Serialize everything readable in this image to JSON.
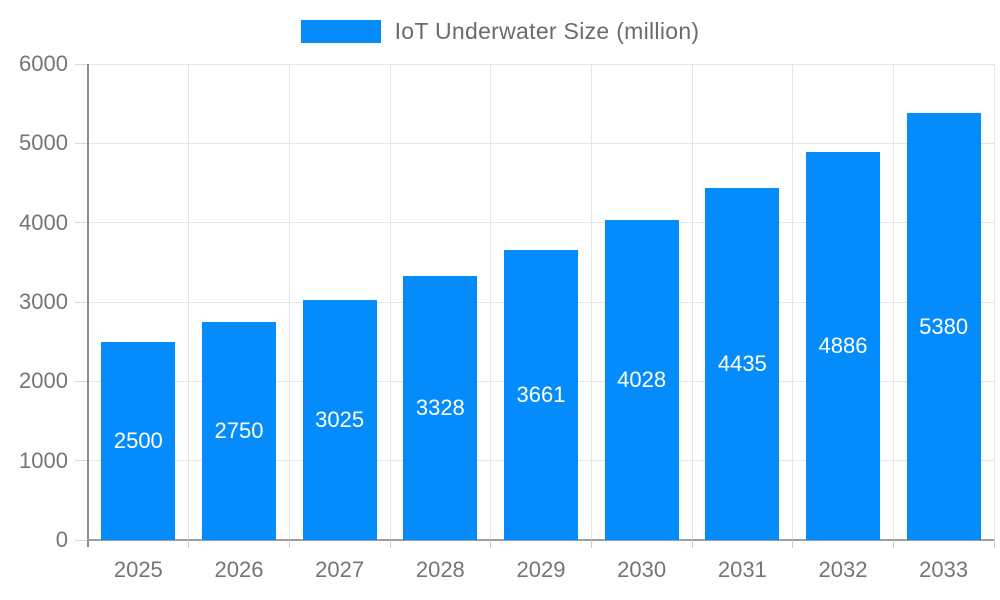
{
  "chart_data": {
    "type": "bar",
    "title": "IoT Underwater Size (million)",
    "categories": [
      "2025",
      "2026",
      "2027",
      "2028",
      "2029",
      "2030",
      "2031",
      "2032",
      "2033"
    ],
    "values": [
      2500,
      2750,
      3025,
      3328,
      3661,
      4028,
      4435,
      4886,
      5380
    ],
    "xlabel": "",
    "ylabel": "",
    "ylim": [
      0,
      6000
    ],
    "ytick_interval": 1000,
    "yticks": [
      "0",
      "1000",
      "2000",
      "3000",
      "4000",
      "5000",
      "6000"
    ],
    "grid": true,
    "legend_position": "top-center",
    "value_labels": "inside-center"
  },
  "legend": {
    "label": "IoT Underwater Size (million)"
  },
  "colors": {
    "bar": "#058cfc",
    "value_label": "#ffffff",
    "axis_text": "#757575",
    "legend_text": "#6b6b6b",
    "gridline": "#e6e6e6",
    "axis_line": "#8c8c8c"
  }
}
